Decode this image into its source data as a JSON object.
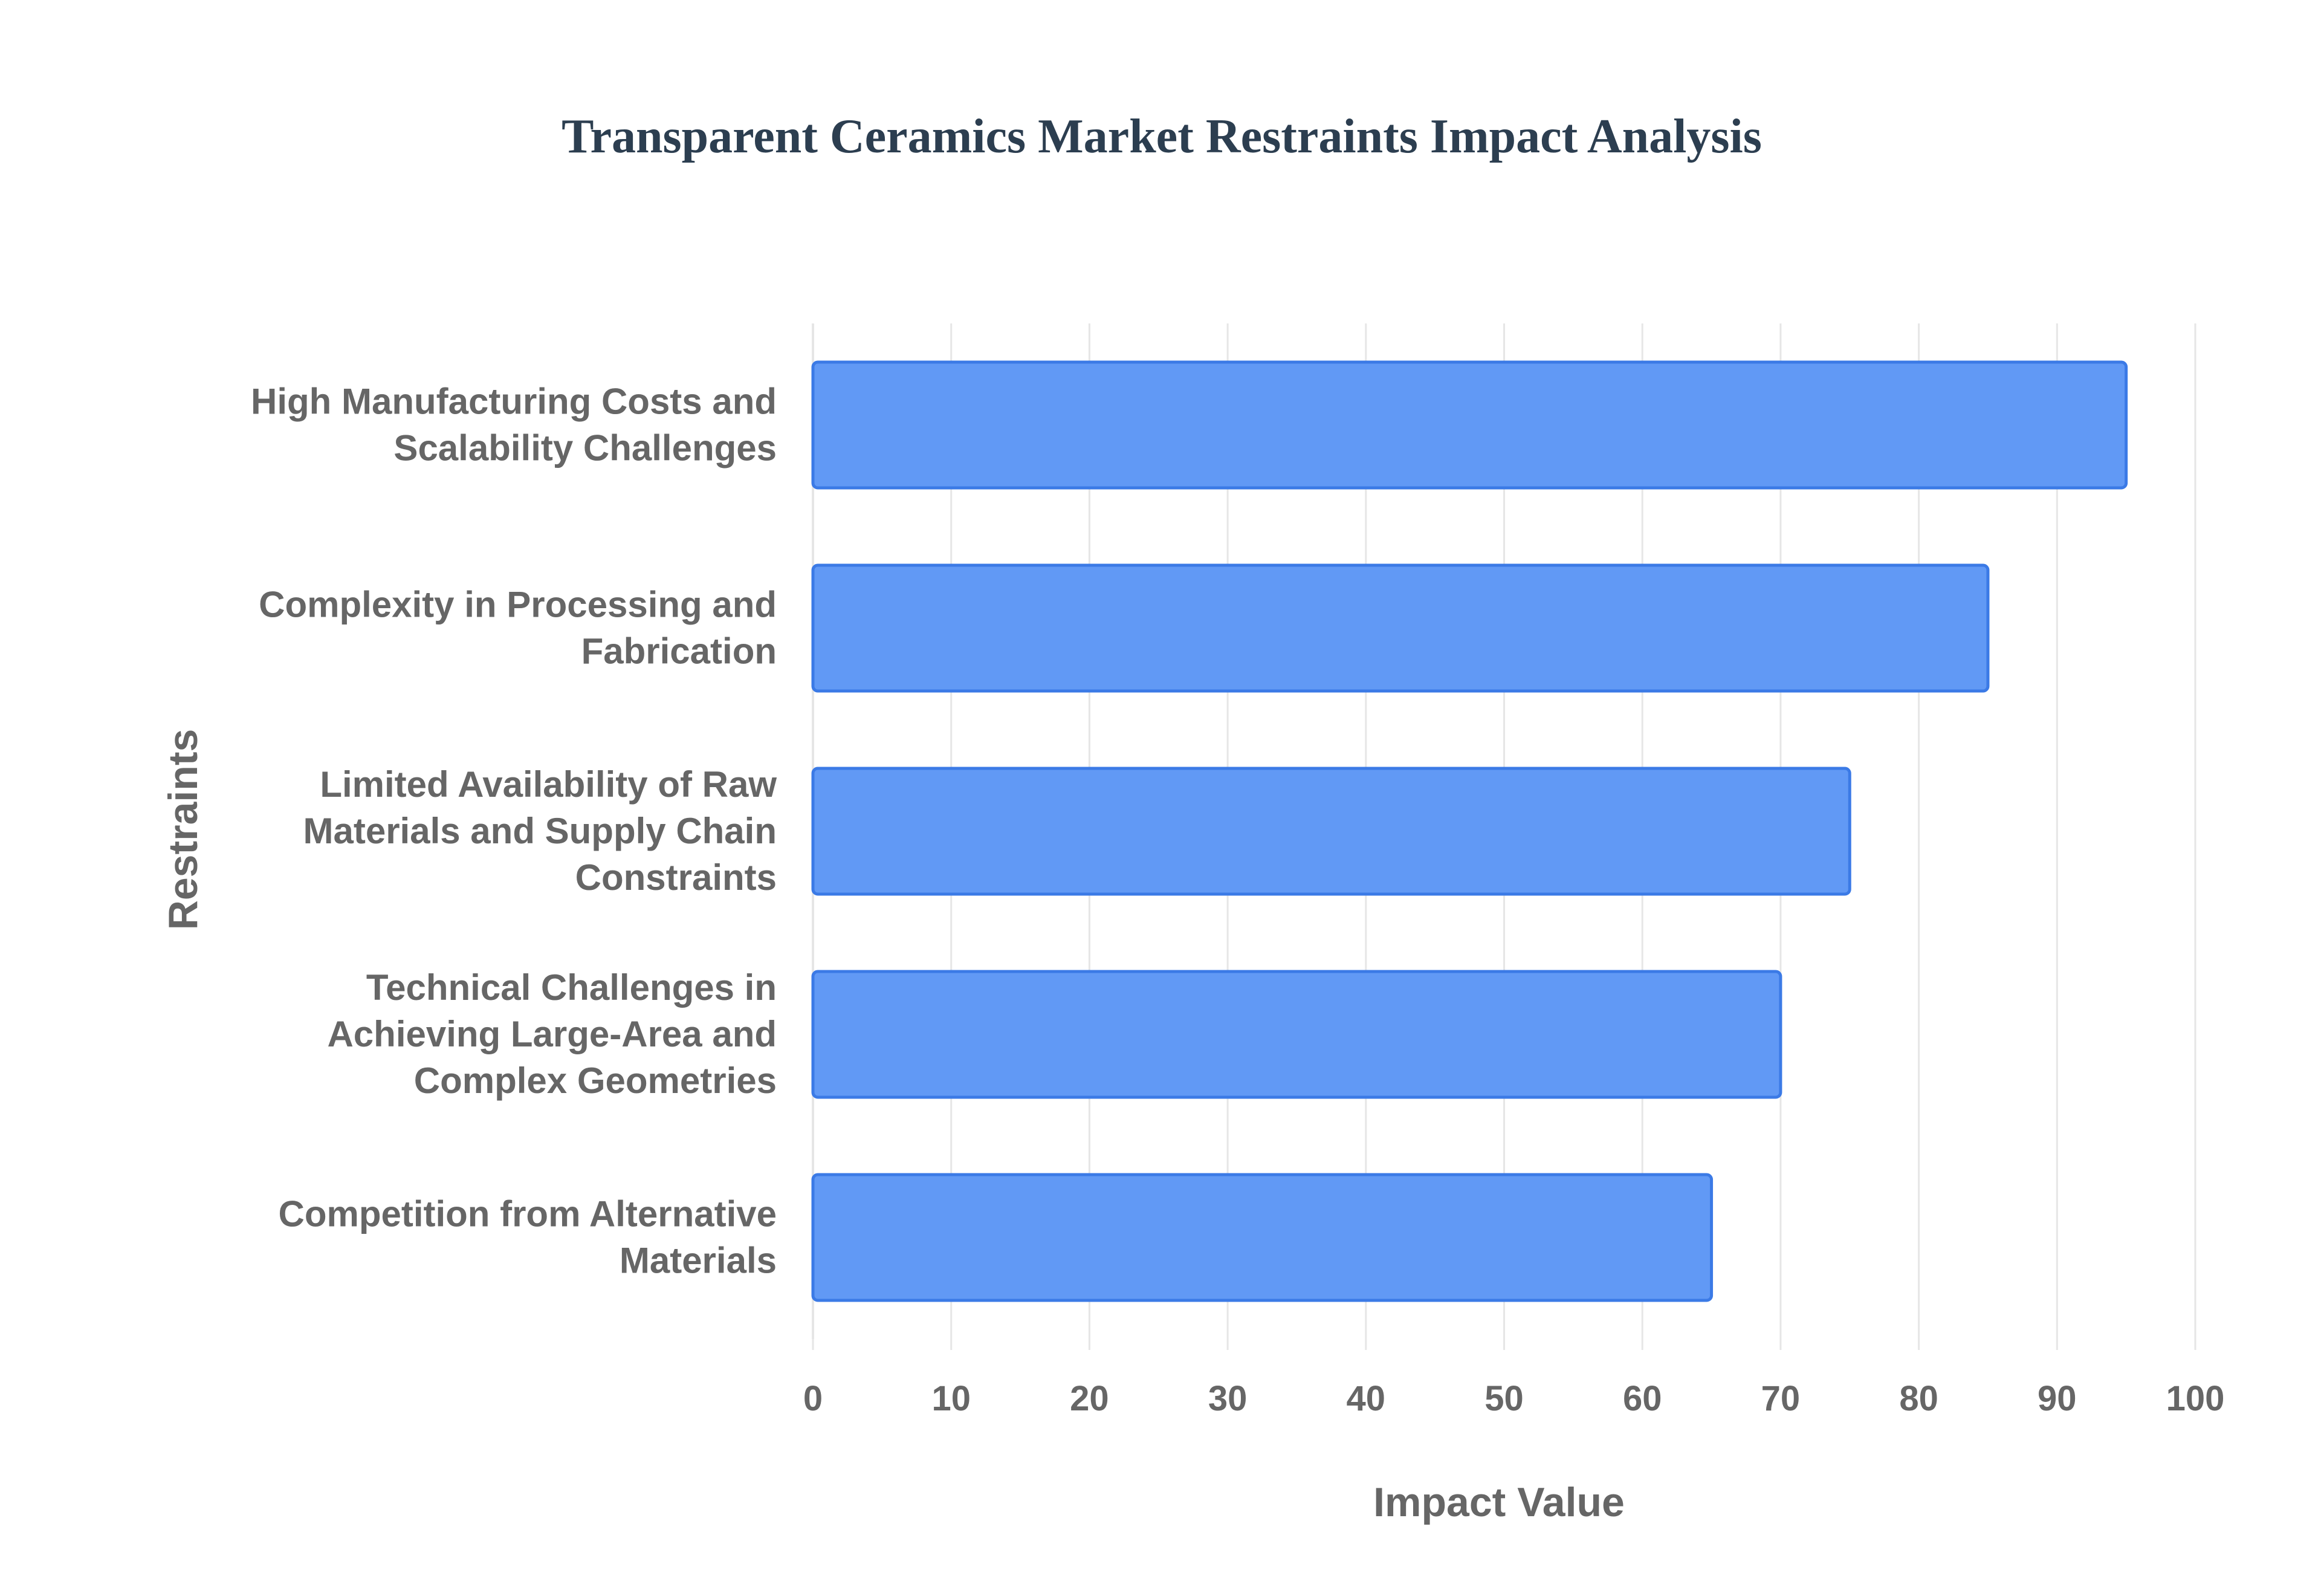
{
  "chart_data": {
    "type": "bar",
    "orientation": "horizontal",
    "title": "Transparent Ceramics Market Restraints Impact Analysis",
    "xlabel": "Impact Value",
    "ylabel": "Restraints",
    "xlim": [
      0,
      100
    ],
    "xticks": [
      "0",
      "10",
      "20",
      "30",
      "40",
      "50",
      "60",
      "70",
      "80",
      "90",
      "100"
    ],
    "grid": true,
    "categories": [
      [
        "High Manufacturing Costs and",
        "Scalability Challenges"
      ],
      [
        "Complexity in Processing and",
        "Fabrication"
      ],
      [
        "Limited Availability of Raw",
        "Materials and Supply Chain",
        "Constraints"
      ],
      [
        "Technical Challenges in",
        "Achieving Large-Area and",
        "Complex Geometries"
      ],
      [
        "Competition from Alternative",
        "Materials"
      ]
    ],
    "values": [
      95,
      85,
      75,
      70,
      65
    ],
    "colors": {
      "bar_fill": "#6199f5",
      "bar_stroke": "#3b7ae6",
      "title": "#2c3e50",
      "text": "#666666",
      "grid": "#e6e6e6"
    }
  }
}
